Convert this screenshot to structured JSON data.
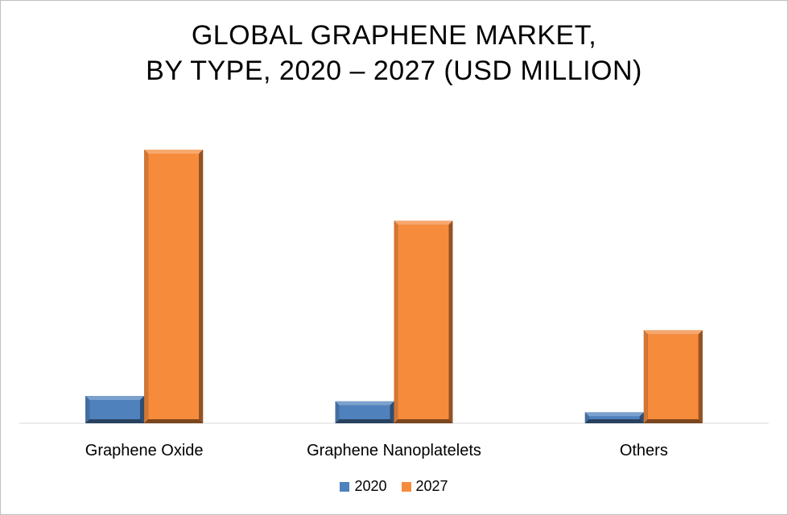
{
  "chart_data": {
    "type": "bar",
    "title": "GLOBAL GRAPHENE MARKET,",
    "subtitle": "BY TYPE, 2020 – 2027 (USD MILLION)",
    "categories": [
      "Graphene Oxide",
      "Graphene Nanoplatelets",
      "Others"
    ],
    "series": [
      {
        "name": "2020",
        "values": [
          10,
          8,
          4
        ],
        "color": "#4f81bd"
      },
      {
        "name": "2027",
        "values": [
          100,
          74,
          34
        ],
        "color": "#f68b3c"
      }
    ],
    "ylim": [
      0,
      100
    ],
    "grid": false,
    "legend": "bottom-center",
    "style": "3d-bevel"
  }
}
